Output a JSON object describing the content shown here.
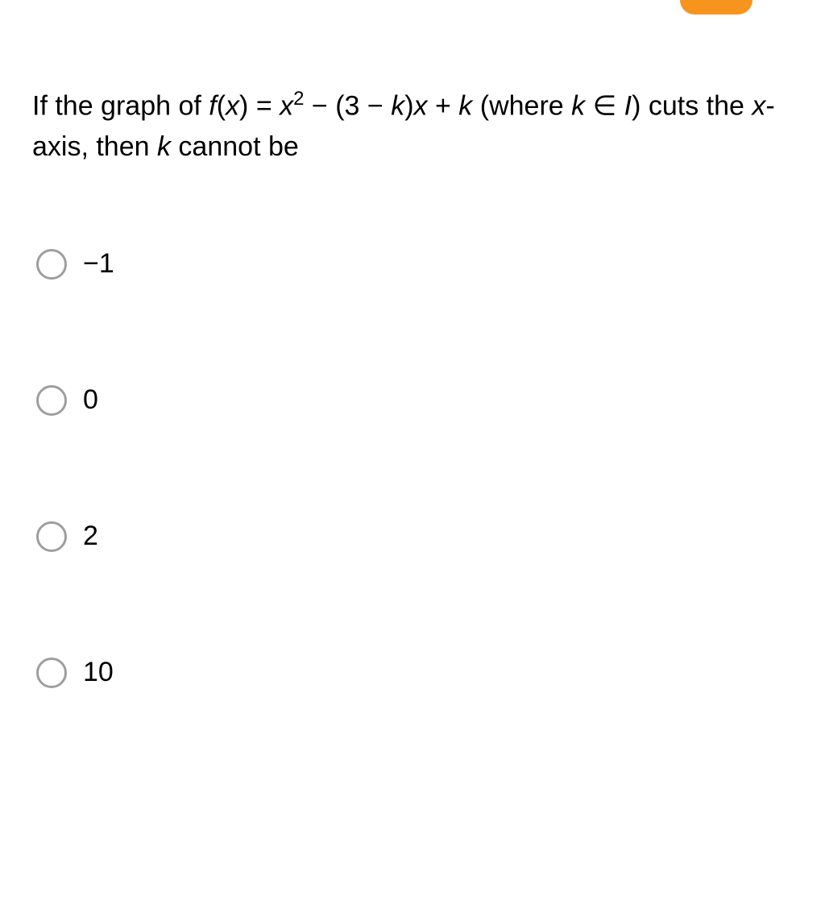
{
  "question": {
    "text_parts": {
      "part1": "If the graph of ",
      "fx": "f",
      "x1": "(",
      "var_x1": "x",
      "x2": ") = ",
      "var_x2": "x",
      "sup2": "2",
      "minus1": " − (3 − ",
      "var_k1": "k",
      "close1": ")",
      "var_x3": "x",
      "plus": " + ",
      "var_k2": "k",
      "where1": " (where ",
      "var_k3": "k",
      "in": " ∈ ",
      "var_I": "I",
      "where2": ") cuts the ",
      "var_x4": "x",
      "axis": "-axis, then ",
      "var_k4": "k",
      "cannot": " cannot be"
    }
  },
  "options": [
    {
      "label": "−1"
    },
    {
      "label": "0"
    },
    {
      "label": "2"
    },
    {
      "label": "10"
    }
  ],
  "colors": {
    "orange": "#f7941d",
    "text": "#000000",
    "radio_border": "#9e9e9e",
    "background": "#ffffff"
  },
  "typography": {
    "question_fontsize": 34,
    "option_fontsize": 34,
    "sup_fontsize": 24
  }
}
